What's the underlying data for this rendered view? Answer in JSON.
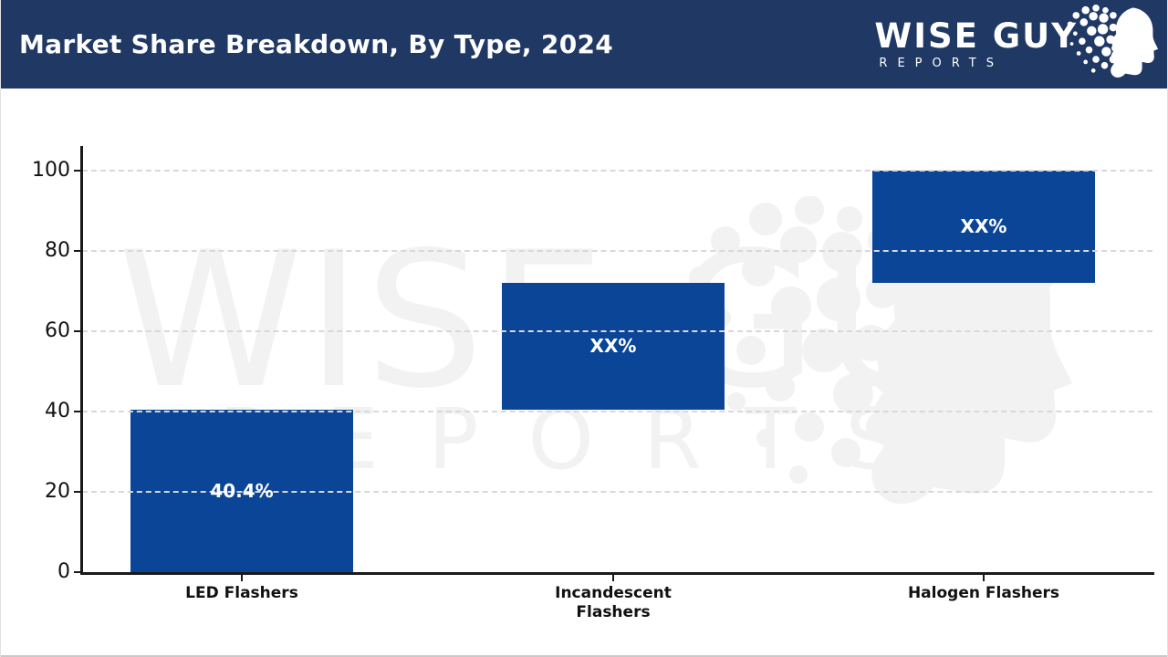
{
  "header": {
    "title": "Market Share Breakdown, By Type, 2024",
    "bg_color": "#1f3864",
    "logo": {
      "line1": "WISE GUY",
      "line2": "REPORTS"
    }
  },
  "watermark": {
    "line1": "WISE GUY",
    "line2": "REPORTS"
  },
  "chart_data": {
    "type": "bar",
    "variant": "waterfall",
    "title": "Market Share Breakdown, By Type, 2024",
    "categories": [
      "LED Flashers",
      "Incandescent Flashers",
      "Halogen Flashers"
    ],
    "categories_display": [
      [
        "LED Flashers"
      ],
      [
        "Incandescent",
        "Flashers"
      ],
      [
        "Halogen Flashers"
      ]
    ],
    "segments": [
      {
        "category": "LED Flashers",
        "start": 0,
        "end": 40.4,
        "label": "40.4%"
      },
      {
        "category": "Incandescent Flashers",
        "start": 40.4,
        "end": 72,
        "label": "XX%"
      },
      {
        "category": "Halogen Flashers",
        "start": 72,
        "end": 100,
        "label": "XX%"
      }
    ],
    "ylim": [
      0,
      100
    ],
    "yticks": [
      0,
      20,
      40,
      60,
      80,
      100
    ],
    "grid": {
      "axis": "y",
      "style": "dashed",
      "color": "#d8d8d8",
      "drawn_on_top": true
    },
    "bar_color": "#0a4597",
    "bar_label_color": "#ffffff",
    "axis_color": "#1a1a1a",
    "legend": "none"
  }
}
